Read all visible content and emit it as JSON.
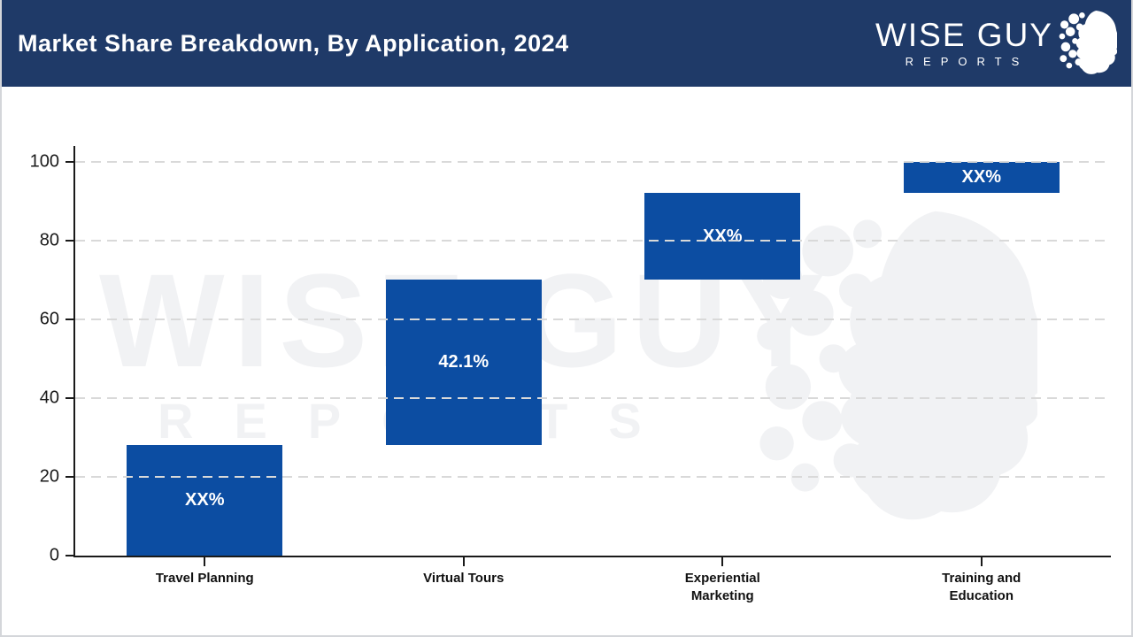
{
  "header": {
    "title": "Market Share Breakdown, By Application, 2024",
    "logo_line1": "WISE GUY",
    "logo_line2": "REPORTS",
    "bg_color": "#1f3a68"
  },
  "watermark": {
    "line1": "WISE GUY",
    "line2": "REPORTS"
  },
  "chart_data": {
    "type": "bar",
    "subtype": "waterfall",
    "title": "Market Share Breakdown, By Application, 2024",
    "categories": [
      "Travel Planning",
      "Virtual Tours",
      "Experiential Marketing",
      "Training and Education"
    ],
    "category_lines": [
      [
        "Travel Planning"
      ],
      [
        "Virtual Tours"
      ],
      [
        "Experiential",
        "Marketing"
      ],
      [
        "Training and",
        "Education"
      ]
    ],
    "series": [
      {
        "name": "Market Share %",
        "starts": [
          0,
          28,
          70.1,
          92
        ],
        "ends": [
          28,
          70.1,
          92,
          100
        ],
        "values": [
          28,
          42.1,
          21.9,
          8
        ]
      }
    ],
    "bar_labels": [
      "XX%",
      "42.1%",
      "XX%",
      "XX%"
    ],
    "yticks": [
      0,
      20,
      40,
      60,
      80,
      100
    ],
    "ylim": [
      0,
      104
    ],
    "xlabel": "",
    "ylabel": "",
    "grid": "dashed-horizontal",
    "legend": "none",
    "bar_color": "#0c4da2",
    "bar_label_color": "#ffffff",
    "gridline_color": "#d9d9d9",
    "axis_color": "#1a1a1a"
  }
}
